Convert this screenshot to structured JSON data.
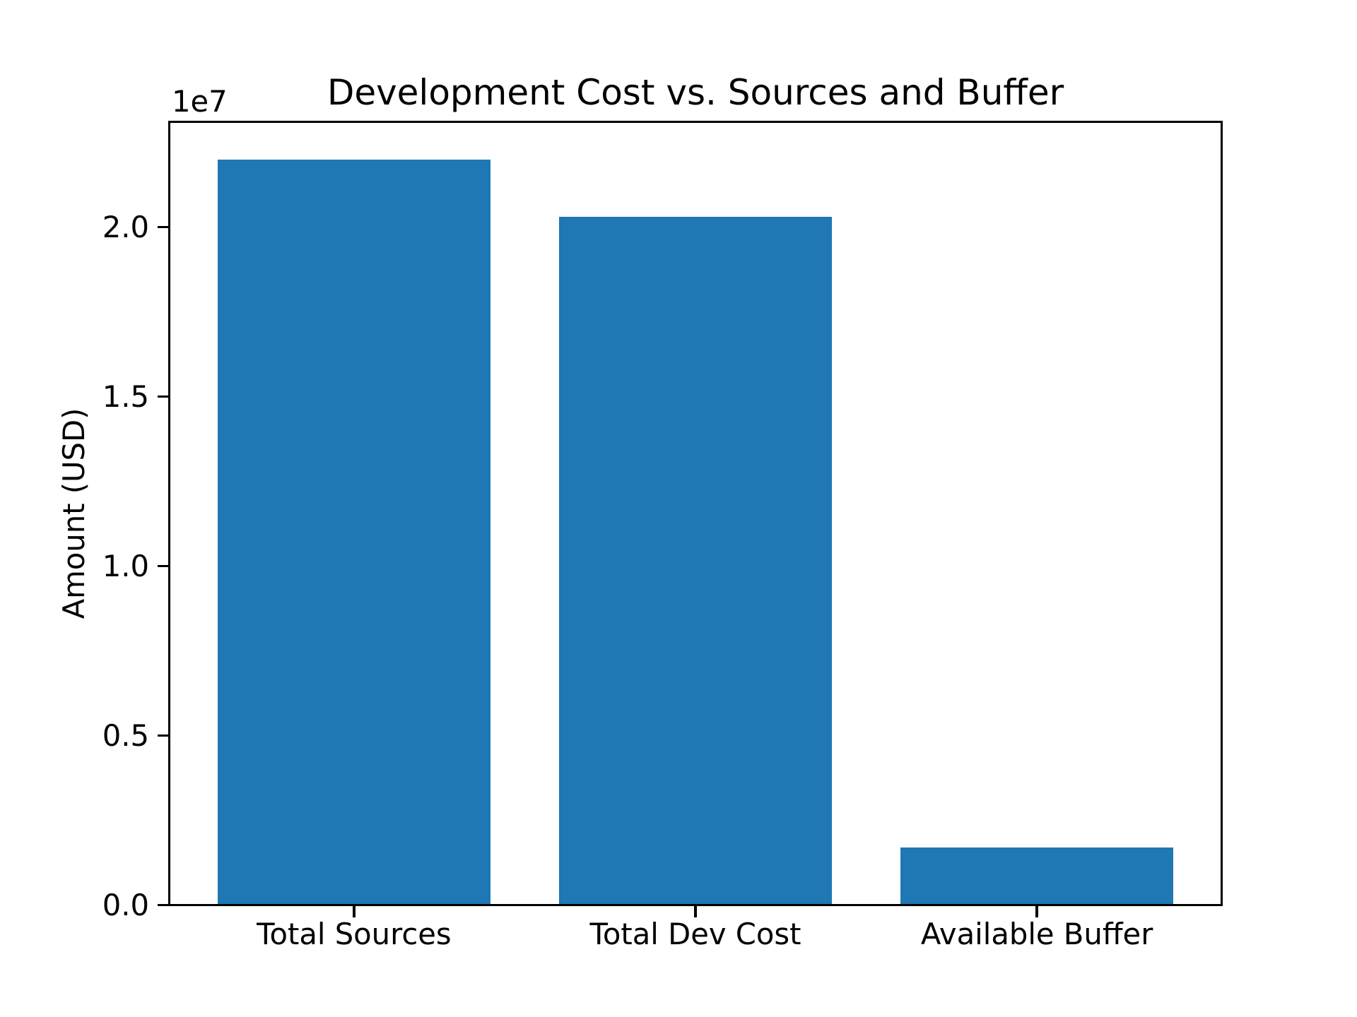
{
  "chart_data": {
    "type": "bar",
    "title": "Development Cost vs. Sources and Buffer",
    "categories": [
      "Total Sources",
      "Total Dev Cost",
      "Available Buffer"
    ],
    "values": [
      22000000,
      20300000,
      1700000
    ],
    "xlabel": "",
    "ylabel": "Amount (USD)",
    "ylim": [
      0,
      23100000
    ],
    "yticks": [
      {
        "value": 0,
        "label": "0.0"
      },
      {
        "value": 5000000,
        "label": "0.5"
      },
      {
        "value": 10000000,
        "label": "1.0"
      },
      {
        "value": 15000000,
        "label": "1.5"
      },
      {
        "value": 20000000,
        "label": "2.0"
      }
    ],
    "y_offset_label": "1e7",
    "bar_color": "#1f77b4",
    "bar_width_fraction": 0.8,
    "x_margin_fraction": 0.05,
    "grid": false,
    "legend_position": "none",
    "background_color": "#ffffff",
    "spine_color": "#000000"
  }
}
